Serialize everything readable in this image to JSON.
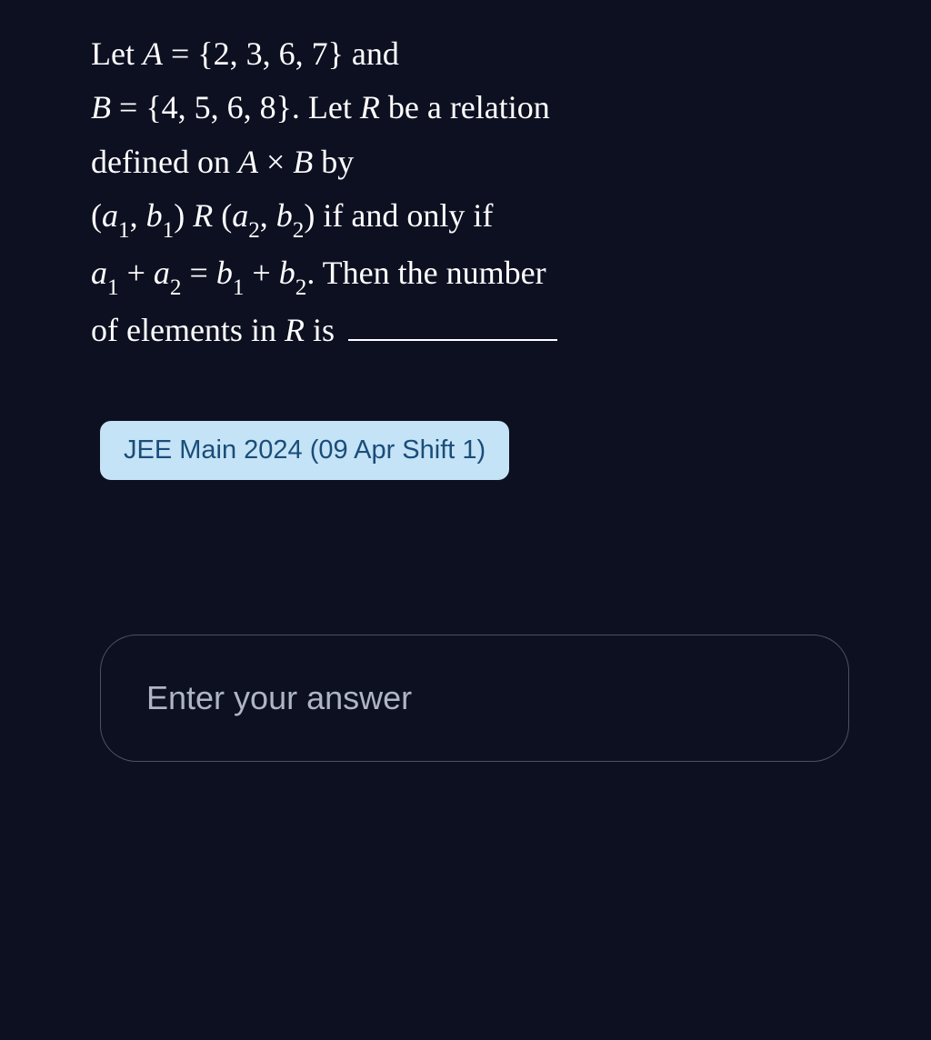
{
  "question": {
    "line1_pre": "Let ",
    "setA_var": "A",
    "eq": " = ",
    "setA_val": "{2, 3, 6, 7}",
    "line1_post": " and",
    "setB_var": "B",
    "setB_val": "{4, 5, 6, 8}",
    "line2_mid": ". Let ",
    "R_var": "R",
    "line2_post": " be a relation",
    "line3_pre": "defined on ",
    "A_var": "A",
    "times": " × ",
    "B_var": "B",
    "line3_post": " by",
    "pair1_open": "(",
    "a": "a",
    "b": "b",
    "one": "1",
    "two": "2",
    "comma": ", ",
    "pair_close": ") ",
    "R_mid": "R",
    "pair2_open": " (",
    "line4_post": " if and only if",
    "plus": " + ",
    "eq2": " = ",
    "line5_post": ". Then the number",
    "line6_pre": "of elements in ",
    "line6_post": " is "
  },
  "tag": {
    "label": "JEE Main 2024 (09 Apr Shift 1)"
  },
  "answer": {
    "placeholder": "Enter your answer"
  },
  "colors": {
    "background": "#0d1021",
    "text": "#ffffff",
    "tag_bg": "#c5e3f6",
    "tag_text": "#1a4d7a",
    "input_border": "#4a5266",
    "placeholder": "#aeb5c4"
  },
  "typography": {
    "question_fontsize": 36,
    "tag_fontsize": 29,
    "input_fontsize": 36
  }
}
